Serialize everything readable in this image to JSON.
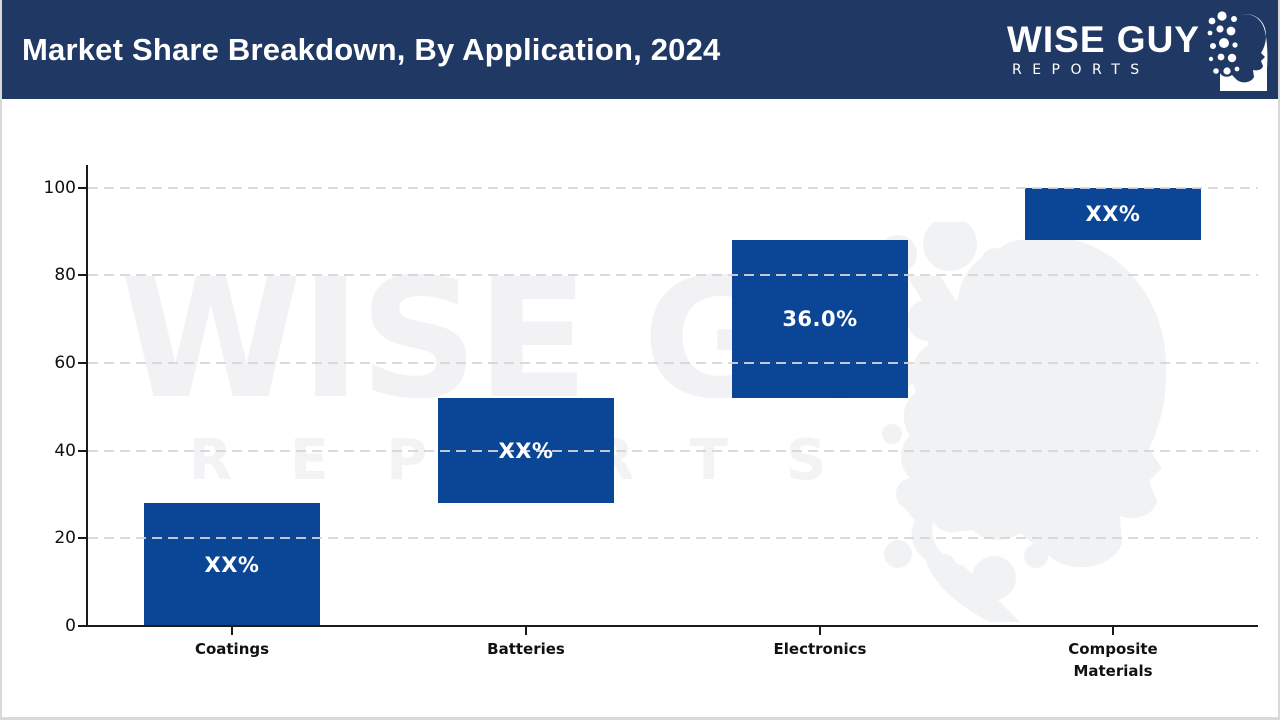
{
  "header": {
    "title": "Market Share Breakdown, By Application, 2024",
    "logo": {
      "primary": "WISE GUY",
      "secondary": "REPORTS"
    }
  },
  "watermark": {
    "primary": "WISE GUY",
    "secondary": "REPORTS"
  },
  "chart_data": {
    "type": "bar",
    "subtype": "floating-waterfall",
    "title": "Market Share Breakdown, By Application, 2024",
    "categories": [
      "Coatings",
      "Batteries",
      "Electronics",
      "Composite Materials"
    ],
    "series": [
      {
        "name": "Market Share",
        "segments": [
          {
            "category": "Coatings",
            "start": 0,
            "end": 28,
            "label": "XX%"
          },
          {
            "category": "Batteries",
            "start": 28,
            "end": 52,
            "label": "XX%"
          },
          {
            "category": "Electronics",
            "start": 52,
            "end": 88,
            "label": "36.0%"
          },
          {
            "category": "Composite Materials",
            "start": 88,
            "end": 100,
            "label": "XX%"
          }
        ]
      }
    ],
    "ylim": [
      0,
      100
    ],
    "yticks": [
      "0",
      "20",
      "40",
      "60",
      "80",
      "100"
    ],
    "grid": {
      "horizontal": true,
      "style": "dashed",
      "drawn_over_bars": true
    },
    "legend": "none",
    "colors": {
      "bar": "#0b4696",
      "axis": "#1a1a1a",
      "grid": "#d6d6d6",
      "header": "#1f3864"
    }
  }
}
